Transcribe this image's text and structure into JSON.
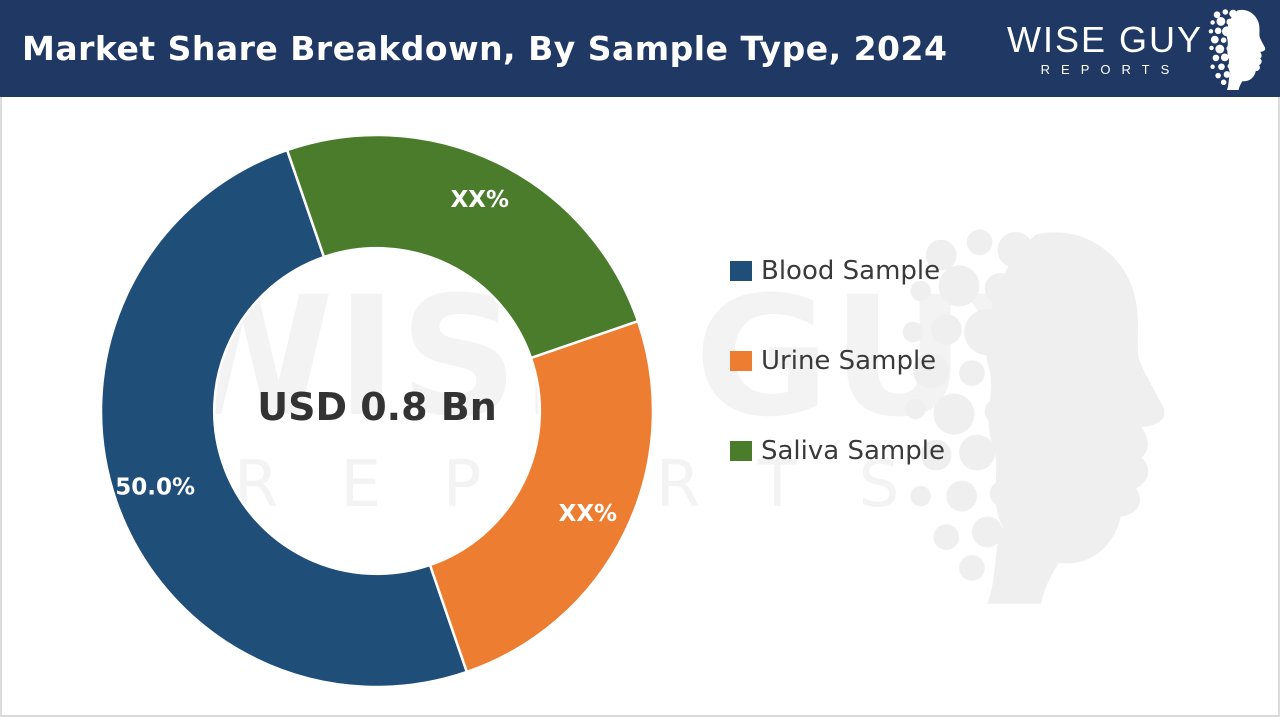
{
  "header": {
    "title": "Market Share Breakdown, By Sample Type, 2024",
    "logo": {
      "line1": "WISE GUY",
      "line2": "REPORTS"
    }
  },
  "watermark": {
    "line1": "WISE GUY",
    "line2": "REPORTS"
  },
  "chart_data": {
    "type": "pie",
    "subtype": "donut",
    "title": "Market Share Breakdown, By Sample Type, 2024",
    "center_label": "USD 0.8 Bn",
    "start_angle_deg": 109,
    "direction": "counterclockwise",
    "inner_radius_ratio": 0.59,
    "label_radius_ratio": 0.85,
    "legend_position": "right",
    "segments": [
      {
        "name": "Blood Sample",
        "value_pct": 50.0,
        "display_label": "50.0%",
        "color": "#1f4e79"
      },
      {
        "name": "Urine Sample",
        "value_pct": 25.0,
        "display_label": "XX%",
        "color": "#ed7d31"
      },
      {
        "name": "Saliva Sample",
        "value_pct": 25.0,
        "display_label": "XX%",
        "color": "#4a7c2c"
      }
    ]
  },
  "colors": {
    "header_bg": "#1f3864",
    "watermark": "#f3f3f3",
    "border": "#d9d9d9",
    "center_text": "#333333"
  }
}
